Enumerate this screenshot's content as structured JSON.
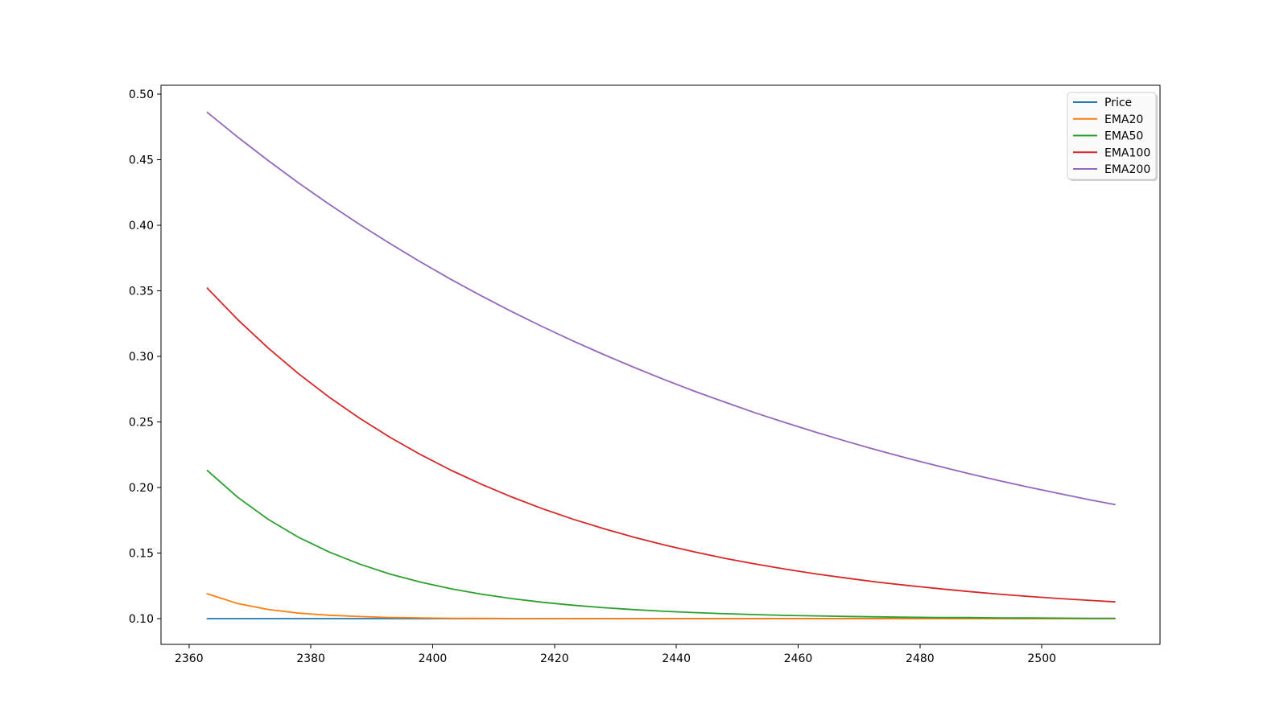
{
  "chart_data": {
    "type": "line",
    "title": "",
    "xlabel": "",
    "ylabel": "",
    "grid": false,
    "legend_position": "upper right",
    "xlim": [
      2355.4,
      2519.4
    ],
    "ylim": [
      0.0804,
      0.5067
    ],
    "x_ticks": [
      2360,
      2380,
      2400,
      2420,
      2440,
      2460,
      2480,
      2500
    ],
    "y_ticks": [
      0.1,
      0.15,
      0.2,
      0.25,
      0.3,
      0.35,
      0.4,
      0.45,
      0.5
    ],
    "y_tick_decimals": 2,
    "axis_color": "#000000",
    "x": [
      2363,
      2368,
      2373,
      2378,
      2383,
      2388,
      2393,
      2398,
      2403,
      2408,
      2413,
      2418,
      2423,
      2428,
      2433,
      2438,
      2443,
      2448,
      2453,
      2458,
      2463,
      2468,
      2473,
      2478,
      2483,
      2488,
      2493,
      2498,
      2503,
      2508,
      2512
    ],
    "series": [
      {
        "name": "Price",
        "color": "#1f77b4",
        "values": [
          0.1,
          0.1,
          0.1,
          0.1,
          0.1,
          0.1,
          0.1,
          0.1,
          0.1,
          0.1,
          0.1,
          0.1,
          0.1,
          0.1,
          0.1,
          0.1,
          0.1,
          0.1,
          0.1,
          0.1,
          0.1,
          0.1,
          0.1,
          0.1,
          0.1,
          0.1,
          0.1,
          0.1,
          0.1,
          0.1,
          0.1
        ]
      },
      {
        "name": "EMA20",
        "color": "#ff7f0e",
        "values": [
          0.119,
          0.1115,
          0.107,
          0.1042,
          0.1026,
          0.1016,
          0.1009,
          0.1006,
          0.1003,
          0.1002,
          0.1001,
          0.1001,
          0.1,
          0.1,
          0.1,
          0.1,
          0.1,
          0.1,
          0.1,
          0.1,
          0.1,
          0.1,
          0.1,
          0.1,
          0.1,
          0.1,
          0.1,
          0.1,
          0.1,
          0.1,
          0.1
        ]
      },
      {
        "name": "EMA50",
        "color": "#2ca02c",
        "values": [
          0.213,
          0.1925,
          0.1757,
          0.162,
          0.1508,
          0.1416,
          0.134,
          0.1279,
          0.1228,
          0.1187,
          0.1153,
          0.1125,
          0.1103,
          0.1084,
          0.1069,
          0.1056,
          0.1046,
          0.1038,
          0.1031,
          0.1025,
          0.1021,
          0.1017,
          0.1014,
          0.1011,
          0.1009,
          0.1008,
          0.1006,
          0.1005,
          0.1004,
          0.1003,
          0.1003
        ]
      },
      {
        "name": "EMA100",
        "color": "#d62728",
        "values": [
          0.352,
          0.328,
          0.3063,
          0.2867,
          0.2689,
          0.2528,
          0.2383,
          0.2251,
          0.2132,
          0.2025,
          0.1927,
          0.1839,
          0.1759,
          0.1687,
          0.1621,
          0.1562,
          0.1509,
          0.146,
          0.1417,
          0.1377,
          0.1341,
          0.1309,
          0.1279,
          0.1253,
          0.1229,
          0.1207,
          0.1187,
          0.1169,
          0.1153,
          0.1139,
          0.1128
        ]
      },
      {
        "name": "EMA200",
        "color": "#9467bd",
        "values": [
          0.486,
          0.4672,
          0.4493,
          0.4322,
          0.416,
          0.4006,
          0.386,
          0.372,
          0.3587,
          0.3461,
          0.3341,
          0.3227,
          0.3118,
          0.3015,
          0.2917,
          0.2823,
          0.2734,
          0.265,
          0.2569,
          0.2493,
          0.242,
          0.2351,
          0.2285,
          0.2222,
          0.2163,
          0.2106,
          0.2052,
          0.2001,
          0.1952,
          0.1905,
          0.187
        ]
      }
    ]
  }
}
